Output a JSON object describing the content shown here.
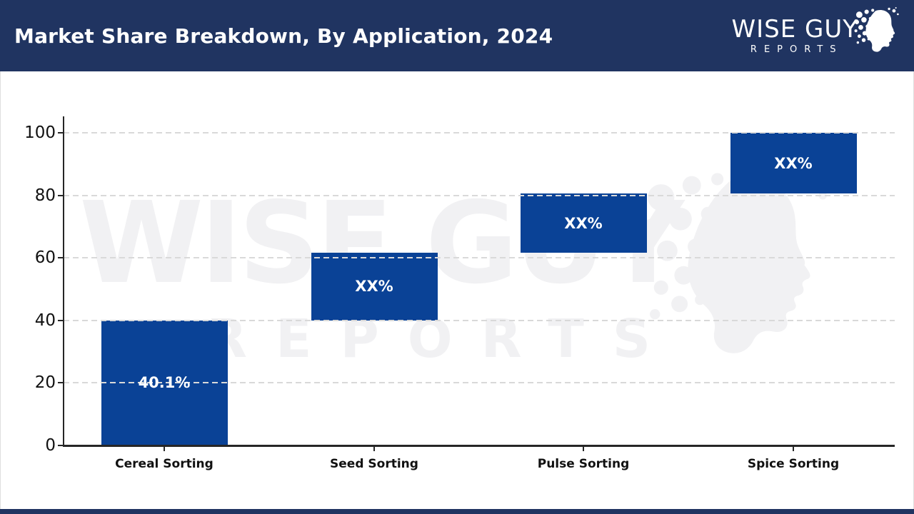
{
  "header": {
    "title": "Market Share Breakdown, By Application, 2024",
    "logo": {
      "brand": "WISE GUY",
      "sub": "REPORTS"
    }
  },
  "watermark": {
    "brand": "WISE GUY",
    "sub": "REPORTS"
  },
  "chart_data": {
    "type": "bar",
    "subtype": "waterfall",
    "title": "Market Share Breakdown, By Application, 2024",
    "categories": [
      "Cereal Sorting",
      "Seed Sorting",
      "Pulse Sorting",
      "Spice Sorting"
    ],
    "segments": [
      {
        "category": "Cereal Sorting",
        "start": 0,
        "end": 40.1,
        "label": "40.1%"
      },
      {
        "category": "Seed Sorting",
        "start": 40.1,
        "end": 61.6,
        "label": "XX%"
      },
      {
        "category": "Pulse Sorting",
        "start": 61.6,
        "end": 80.6,
        "label": "XX%"
      },
      {
        "category": "Spice Sorting",
        "start": 80.6,
        "end": 100,
        "label": "XX%"
      }
    ],
    "ylim": [
      0,
      100
    ],
    "yticks": [
      0,
      20,
      40,
      60,
      80,
      100
    ],
    "grid": true,
    "legend": false,
    "colors": {
      "bar": "#0a4296",
      "bar_label": "#ffffff",
      "axis": "#262626",
      "tick_label": "#111111",
      "grid": "#d9d9d9",
      "header_bg": "#203461",
      "watermark": "#f1f1f3"
    }
  }
}
